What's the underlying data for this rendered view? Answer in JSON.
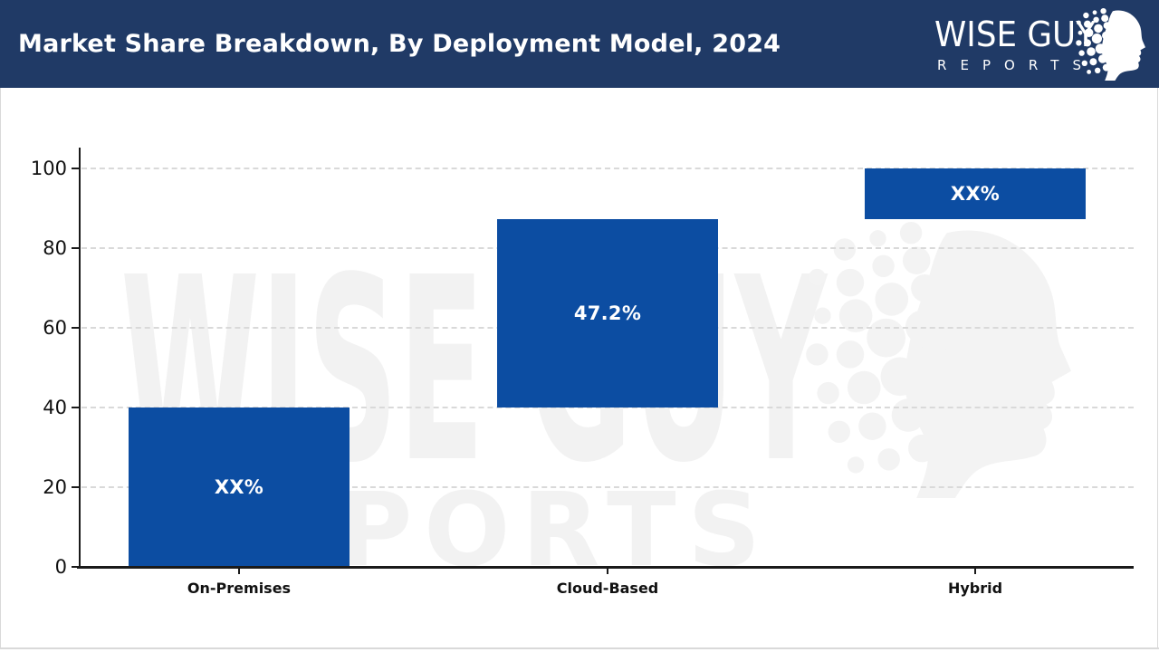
{
  "header": {
    "title": "Market Share Breakdown, By Deployment Model, 2024",
    "logo": {
      "brand_top": "WISE GUY",
      "brand_bottom": "REPORTS"
    }
  },
  "watermark": {
    "text_large": "WISE GUY",
    "text_small": "REPORTS"
  },
  "colors": {
    "header_bg": "#203a66",
    "bar": "#0c4da2",
    "grid": "#d9d9d9",
    "axis": "#1a1a1a",
    "watermark": "#f2f2f2",
    "page_border": "#d9d9d9"
  },
  "chart_data": {
    "type": "bar",
    "variant": "waterfall",
    "title": "Market Share Breakdown, By Deployment Model, 2024",
    "xlabel": "",
    "ylabel": "",
    "categories": [
      "On-Premises",
      "Cloud-Based",
      "Hybrid"
    ],
    "segments": [
      {
        "category": "On-Premises",
        "start": 0,
        "end": 40,
        "value": 40,
        "label": "XX%"
      },
      {
        "category": "Cloud-Based",
        "start": 40,
        "end": 87.2,
        "value": 47.2,
        "label": "47.2%"
      },
      {
        "category": "Hybrid",
        "start": 87.2,
        "end": 100,
        "value": 12.8,
        "label": "XX%"
      }
    ],
    "ylim": [
      0,
      100
    ],
    "yticks": [
      0,
      20,
      40,
      60,
      80,
      100
    ],
    "grid": {
      "horizontal": true,
      "style": "dashed"
    },
    "legend": "none"
  }
}
